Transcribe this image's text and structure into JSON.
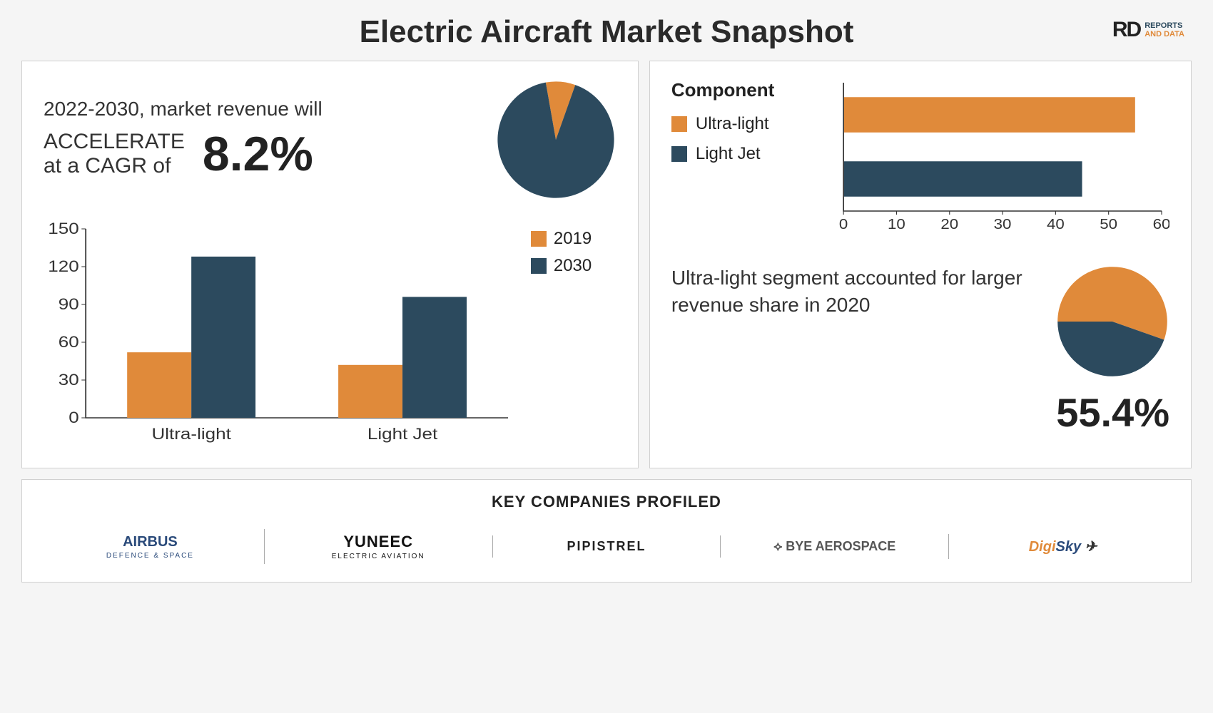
{
  "title": "Electric Aircraft Market Snapshot",
  "logo": {
    "mark": "RD",
    "line1": "REPORTS",
    "line2": "AND DATA"
  },
  "colors": {
    "orange": "#e08a3a",
    "navy": "#2c4a5e",
    "bg": "#f5f5f5",
    "panel_border": "#d0d0d0",
    "text": "#2a2a2a",
    "axis": "#333333"
  },
  "cagr": {
    "line1": "2022-2030, market revenue will",
    "line2a": "ACCELERATE",
    "line2b": "at a CAGR of",
    "percent": "8.2%",
    "pie": {
      "slices": [
        {
          "label": "cagr",
          "value": 8.2,
          "color": "#e08a3a"
        },
        {
          "label": "rest",
          "value": 91.8,
          "color": "#2c4a5e"
        }
      ],
      "start_angle_deg": -10
    }
  },
  "grouped_bar": {
    "type": "bar-grouped",
    "categories": [
      "Ultra-light",
      "Light Jet"
    ],
    "series": [
      {
        "name": "2019",
        "color": "#e08a3a",
        "values": [
          52,
          42
        ]
      },
      {
        "name": "2030",
        "color": "#2c4a5e",
        "values": [
          128,
          96
        ]
      }
    ],
    "ylim": [
      0,
      150
    ],
    "ytick_step": 30,
    "bar_width": 0.38,
    "label_fontsize": 22,
    "tick_fontsize": 22
  },
  "component": {
    "heading": "Component",
    "legend": [
      {
        "label": "Ultra-light",
        "color": "#e08a3a"
      },
      {
        "label": "Light Jet",
        "color": "#2c4a5e"
      }
    ],
    "hbar": {
      "type": "bar-horizontal",
      "items": [
        {
          "label": "Ultra-light",
          "value": 55,
          "color": "#e08a3a"
        },
        {
          "label": "Light Jet",
          "value": 45,
          "color": "#2c4a5e"
        }
      ],
      "xlim": [
        0,
        60
      ],
      "xtick_step": 10,
      "bar_height": 0.55,
      "tick_fontsize": 20
    }
  },
  "segment": {
    "text": "Ultra-light segment accounted for larger revenue share in 2020",
    "percent": "55.4%",
    "pie": {
      "slices": [
        {
          "label": "Ultra-light",
          "value": 55.4,
          "color": "#e08a3a"
        },
        {
          "label": "Light Jet",
          "value": 44.6,
          "color": "#2c4a5e"
        }
      ],
      "start_angle_deg": -90
    }
  },
  "companies": {
    "heading": "KEY COMPANIES PROFILED",
    "list": [
      {
        "name": "AIRBUS",
        "sub": "DEFENCE & SPACE"
      },
      {
        "name": "YUNEEC",
        "sub": "ELECTRIC AVIATION"
      },
      {
        "name": "PIPISTREL",
        "sub": ""
      },
      {
        "name": "BYE AEROSPACE",
        "sub": ""
      },
      {
        "name": "DigiSky",
        "sub": ""
      }
    ]
  }
}
